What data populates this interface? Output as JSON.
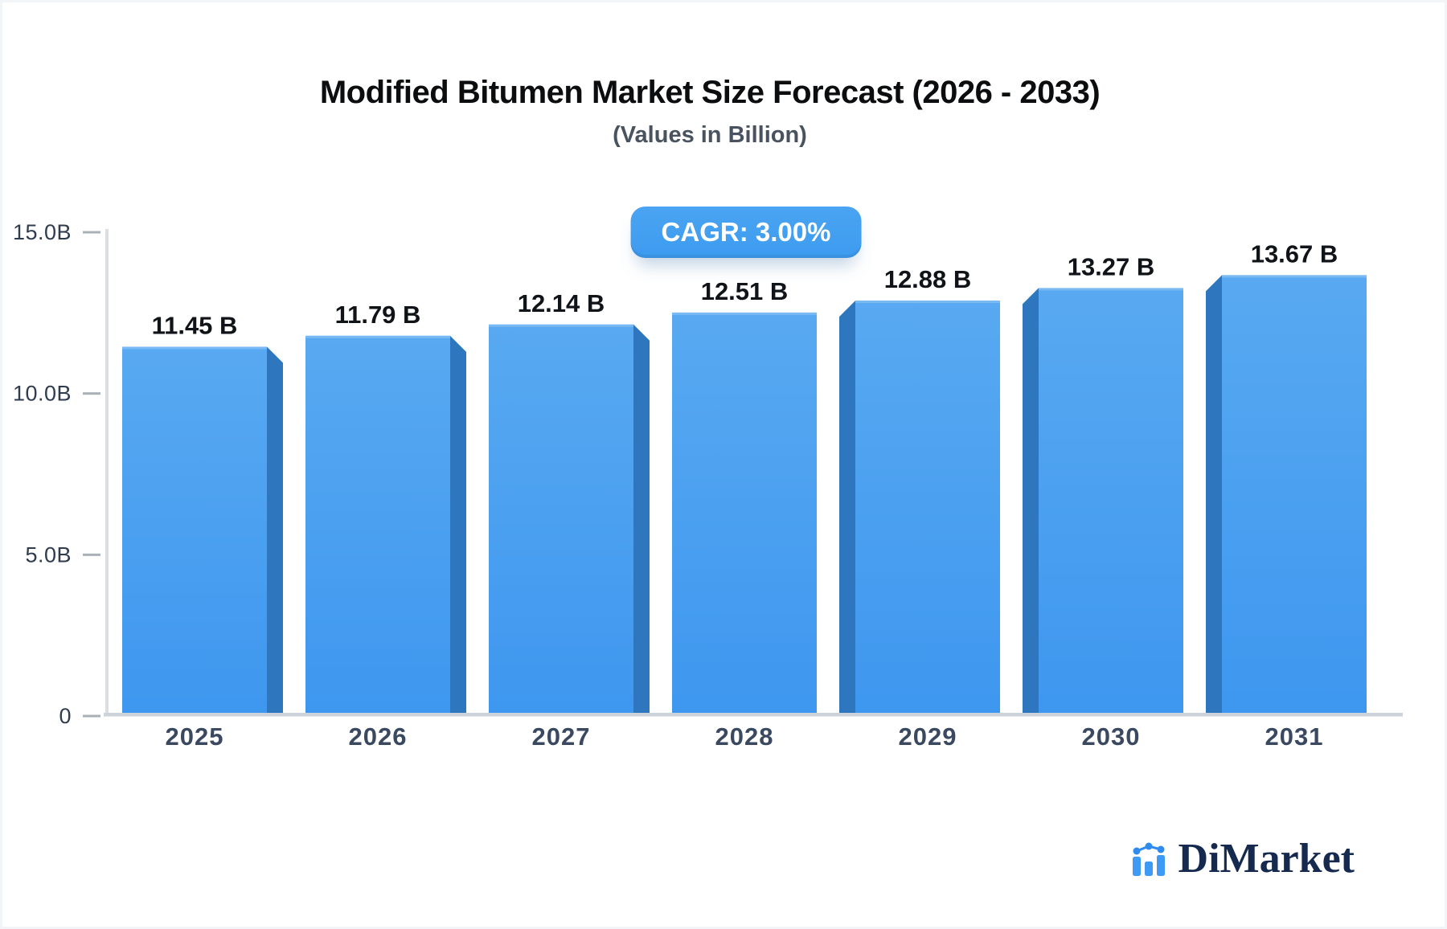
{
  "header": {
    "title": "Modified Bitumen Market Size Forecast (2026 - 2033)",
    "subtitle": "(Values in Billion)"
  },
  "badge": {
    "label": "CAGR: 3.00%"
  },
  "chart_data": {
    "type": "bar",
    "title": "Modified Bitumen Market Size Forecast (2026 - 2033)",
    "subtitle": "(Values in Billion)",
    "categories": [
      "2025",
      "2026",
      "2027",
      "2028",
      "2029",
      "2030",
      "2031"
    ],
    "values": [
      11.45,
      11.79,
      12.14,
      12.51,
      12.88,
      13.27,
      13.67
    ],
    "value_labels": [
      "11.45 B",
      "11.79 B",
      "12.14 B",
      "12.51 B",
      "12.88 B",
      "13.27 B",
      "13.67 B"
    ],
    "xlabel": "",
    "ylabel": "",
    "ylim": [
      0,
      15
    ],
    "yticks": [
      {
        "value": 0,
        "label": "0"
      },
      {
        "value": 5,
        "label": "5.0B"
      },
      {
        "value": 10,
        "label": "10.0B"
      },
      {
        "value": 15,
        "label": "15.0B"
      }
    ],
    "grid": false,
    "legend": false,
    "colors": {
      "bar_top": "#58a9f1",
      "bar_bottom": "#3e97ef",
      "bar_top_highlight": "#79b9f4",
      "bar_side": "#2e76bd",
      "axis_line": "#dadee2",
      "baseline": "#cdd3da",
      "tick_dash": "#a9b0b8",
      "tick_label": "#2f3b4e",
      "category_label": "#3a4960",
      "value_label": "#101318"
    }
  },
  "logo": {
    "name": "DiMarket",
    "icon": "bar-chart-trend-logo-icon"
  }
}
